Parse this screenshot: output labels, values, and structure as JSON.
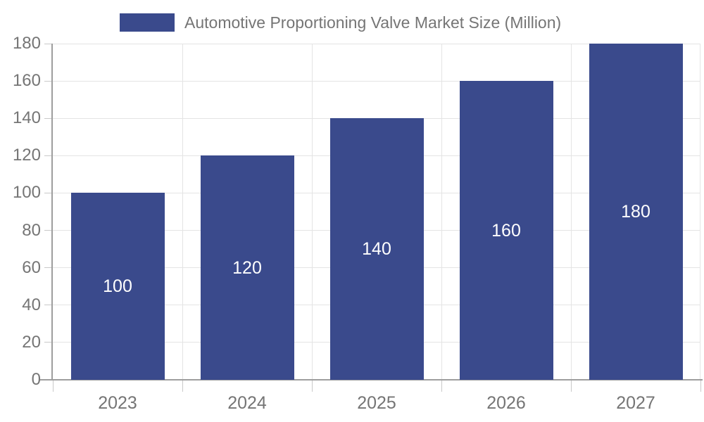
{
  "legend": {
    "label": "Automotive Proportioning Valve Market Size (Million)"
  },
  "chart_data": {
    "type": "bar",
    "title": "Automotive Proportioning Valve Market Size (Million)",
    "categories": [
      "2023",
      "2024",
      "2025",
      "2026",
      "2027"
    ],
    "values": [
      100,
      120,
      140,
      160,
      180
    ],
    "bar_value_labels": [
      "100",
      "120",
      "140",
      "160",
      "180"
    ],
    "xlabel": "",
    "ylabel": "",
    "ylim": [
      0,
      180
    ],
    "ytick_step": 20,
    "ytick_labels": [
      "0",
      "20",
      "40",
      "60",
      "80",
      "100",
      "120",
      "140",
      "160",
      "180"
    ],
    "grid": "both",
    "legend_position": "top"
  },
  "colors": {
    "bar": "#3A4A8C",
    "bar_value_text": "#FFFFFF",
    "axis_line": "#9E9E9E",
    "tick": "#C9C9C9",
    "gridline": "#E4E4E4",
    "label_text": "#757575",
    "background": "#FFFFFF"
  }
}
